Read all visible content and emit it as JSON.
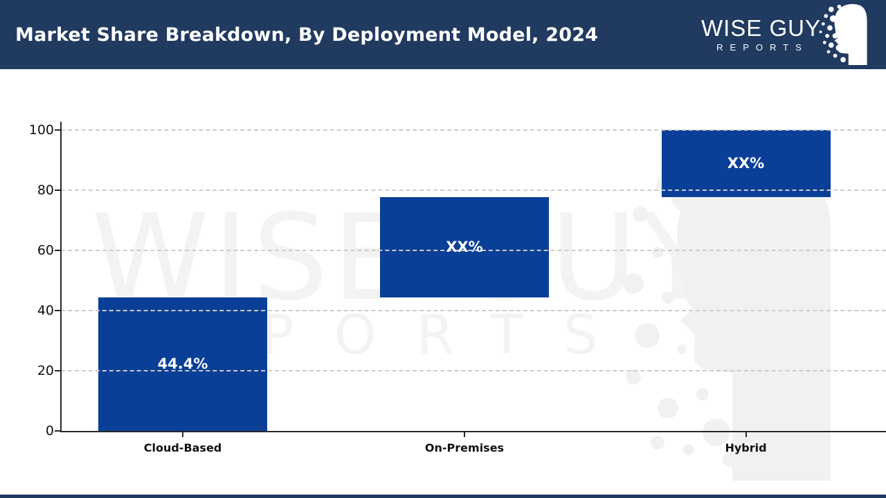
{
  "header": {
    "title": "Market Share Breakdown, By Deployment Model, 2024",
    "logo": {
      "line1": "WISE GUY",
      "line2": "REPORTS"
    }
  },
  "watermark": {
    "line1": "WISE GUY",
    "line2": "REPORTS"
  },
  "colors": {
    "header_bg": "#213a60",
    "bar": "#0a3f98",
    "bar_label": "#ffffff",
    "gridline": "#cccccc",
    "axis": "#262626",
    "watermark": "#f3f3f3"
  },
  "chart_data": {
    "type": "bar",
    "subtype": "waterfall",
    "title": "Market Share Breakdown, By Deployment Model, 2024",
    "categories": [
      "Cloud-Based",
      "On-Premises",
      "Hybrid"
    ],
    "segments": [
      {
        "category": "Cloud-Based",
        "start": 0,
        "end": 44.4,
        "value": 44.4,
        "label": "44.4%"
      },
      {
        "category": "On-Premises",
        "start": 44.4,
        "end": 77.8,
        "value": 33.4,
        "label": "XX%"
      },
      {
        "category": "Hybrid",
        "start": 77.8,
        "end": 100,
        "value": 22.2,
        "label": "XX%"
      }
    ],
    "yticks": [
      0,
      20,
      40,
      60,
      80,
      100
    ],
    "ylim": [
      0,
      100
    ],
    "xlabel": "",
    "ylabel": "",
    "grid": "horizontal-dashed",
    "legend": "none"
  }
}
